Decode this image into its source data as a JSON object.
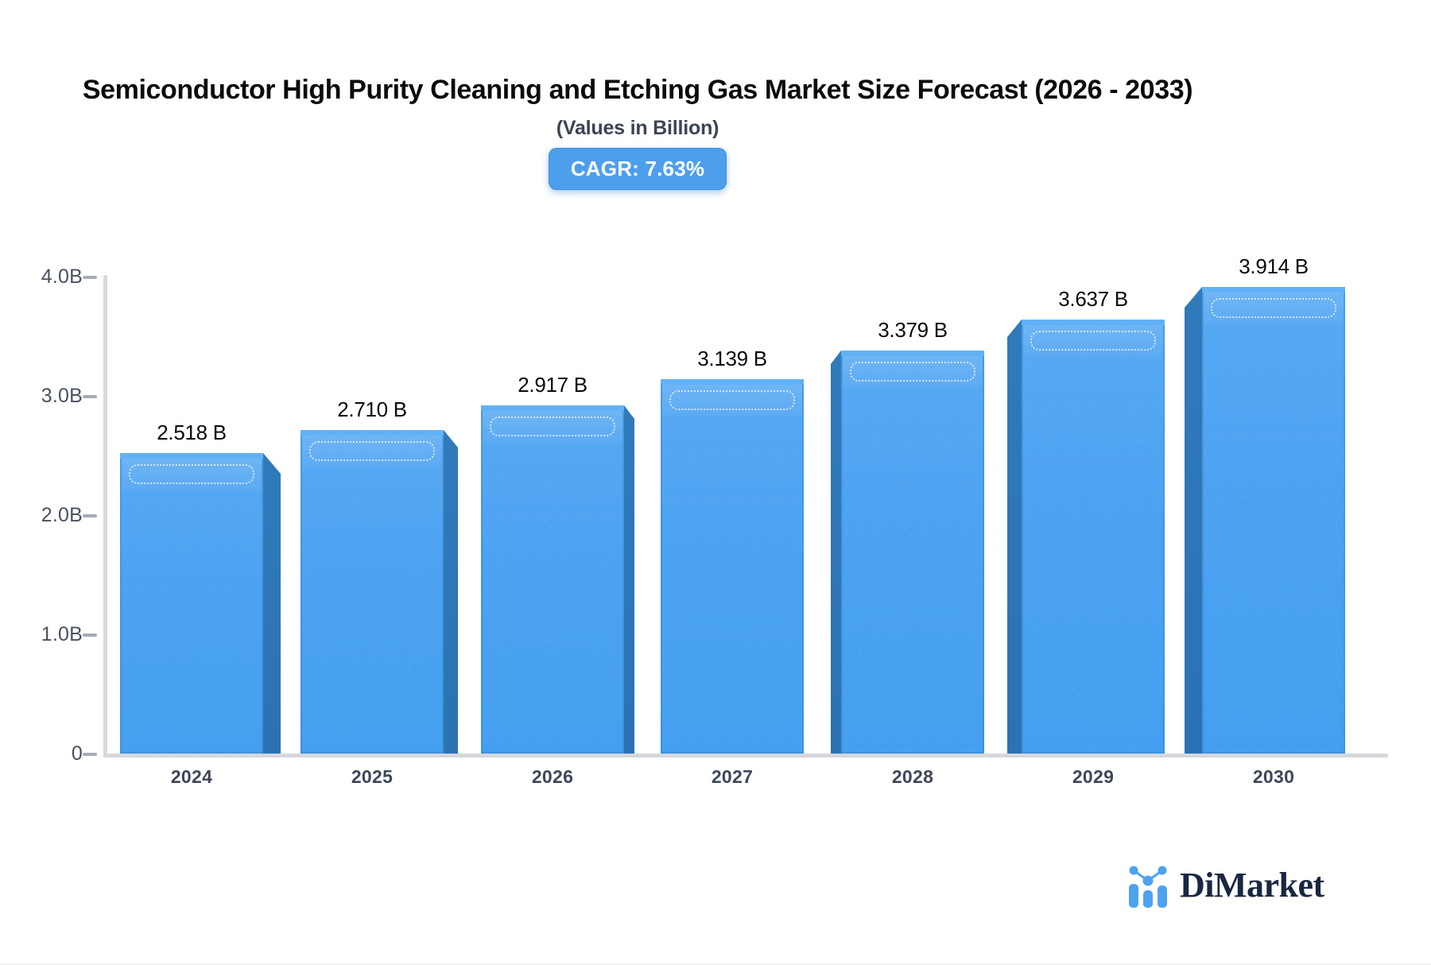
{
  "header": {
    "title": "Semiconductor High Purity Cleaning and Etching Gas Market Size Forecast (2026 - 2033)",
    "subtitle": "(Values in Billion)",
    "cagr_label": "CAGR: 7.63%"
  },
  "chart_data": {
    "type": "bar",
    "title": "Semiconductor High Purity Cleaning and Etching Gas Market Size Forecast (2026 - 2033)",
    "subtitle": "(Values in Billion)",
    "cagr_percent": 7.63,
    "categories": [
      "2024",
      "2025",
      "2026",
      "2027",
      "2028",
      "2029",
      "2030"
    ],
    "values": [
      2.518,
      2.71,
      2.917,
      3.139,
      3.379,
      3.637,
      3.914
    ],
    "value_labels": [
      "2.518 B",
      "2.710 B",
      "2.917 B",
      "3.139 B",
      "3.379 B",
      "3.637 B",
      "3.914 B"
    ],
    "unit": "Billion",
    "xlabel": "",
    "ylabel": "",
    "ylim": [
      0,
      4.0
    ],
    "yticks": [
      {
        "label": "0",
        "value": 0
      },
      {
        "label": "1.0B",
        "value": 1
      },
      {
        "label": "2.0B",
        "value": 2
      },
      {
        "label": "3.0B",
        "value": 3
      },
      {
        "label": "4.0B",
        "value": 4
      }
    ],
    "grid": false,
    "legend": "none",
    "colors": {
      "bar_fill": "#4aa1f0",
      "bar_top_shine": "#61b1f7",
      "bar_side_3d": "#2e76b7",
      "axis_line": "#d8d9de",
      "tick_label": "#4a5260",
      "category_label": "#3d4757",
      "value_label": "#0a0a0a",
      "badge_background": "#4d9fec",
      "badge_text": "#ffffff"
    }
  },
  "footer": {
    "logo_text": "DiMarket",
    "logo_icon": "bar-line-chart-icon",
    "logo_color": "#1a2742",
    "logo_icon_color": "#4da3f0"
  }
}
